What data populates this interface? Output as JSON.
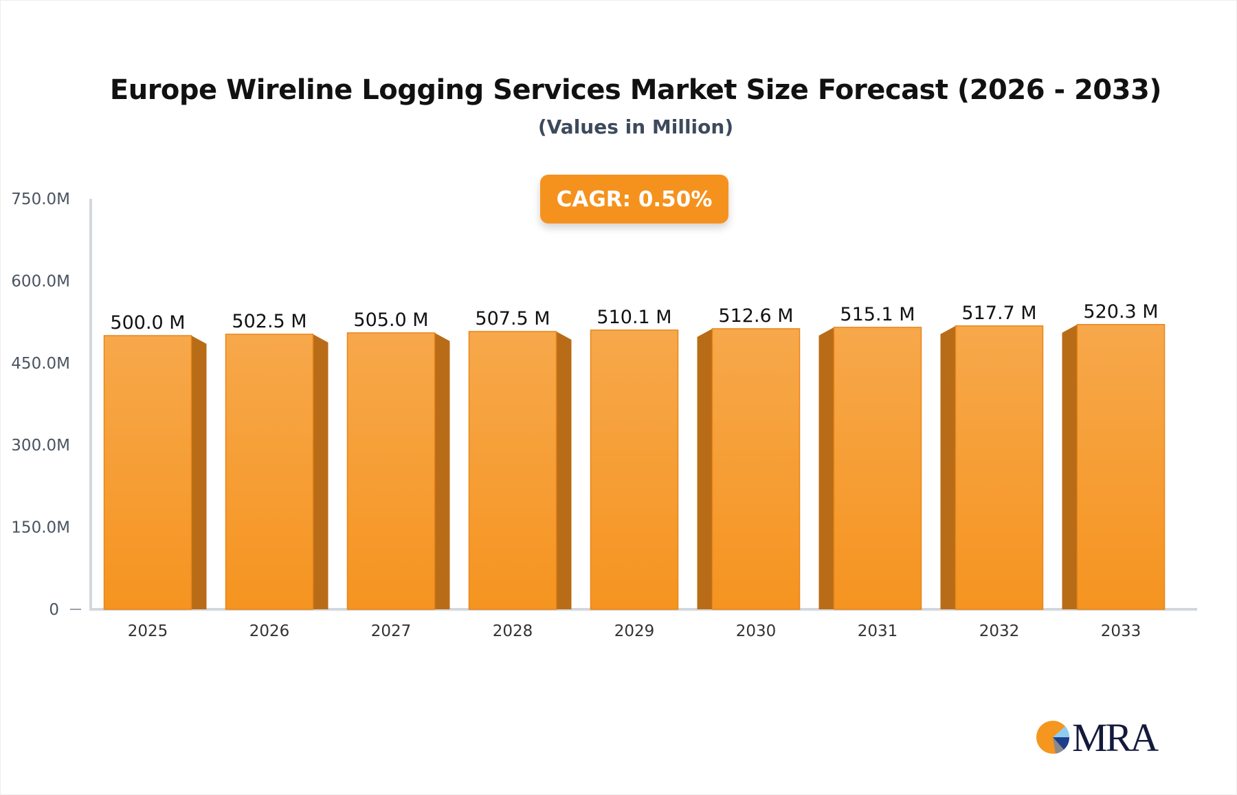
{
  "chart_data": {
    "type": "bar",
    "title": "Europe Wireline Logging Services Market Size Forecast (2026 - 2033)",
    "subtitle": "(Values in Million)",
    "categories": [
      "2025",
      "2026",
      "2027",
      "2028",
      "2029",
      "2030",
      "2031",
      "2032",
      "2033"
    ],
    "values": [
      500.0,
      502.5,
      505.0,
      507.5,
      510.1,
      512.6,
      515.1,
      517.7,
      520.3
    ],
    "data_labels": [
      "500.0 M",
      "502.5 M",
      "505.0 M",
      "507.5 M",
      "510.1 M",
      "512.6 M",
      "515.1 M",
      "517.7 M",
      "520.3 M"
    ],
    "ylim": [
      0,
      750
    ],
    "yticks": [
      0,
      150,
      300,
      450,
      600,
      750
    ],
    "ytick_labels": [
      "0",
      "150.0M",
      "300.0M",
      "450.0M",
      "600.0M",
      "750.0M"
    ],
    "grid": false,
    "bar_color": "#f5961f",
    "bar_side_color": "#b96c17",
    "annotation": "CAGR: 0.50%"
  },
  "logo": {
    "text": "MRA"
  }
}
